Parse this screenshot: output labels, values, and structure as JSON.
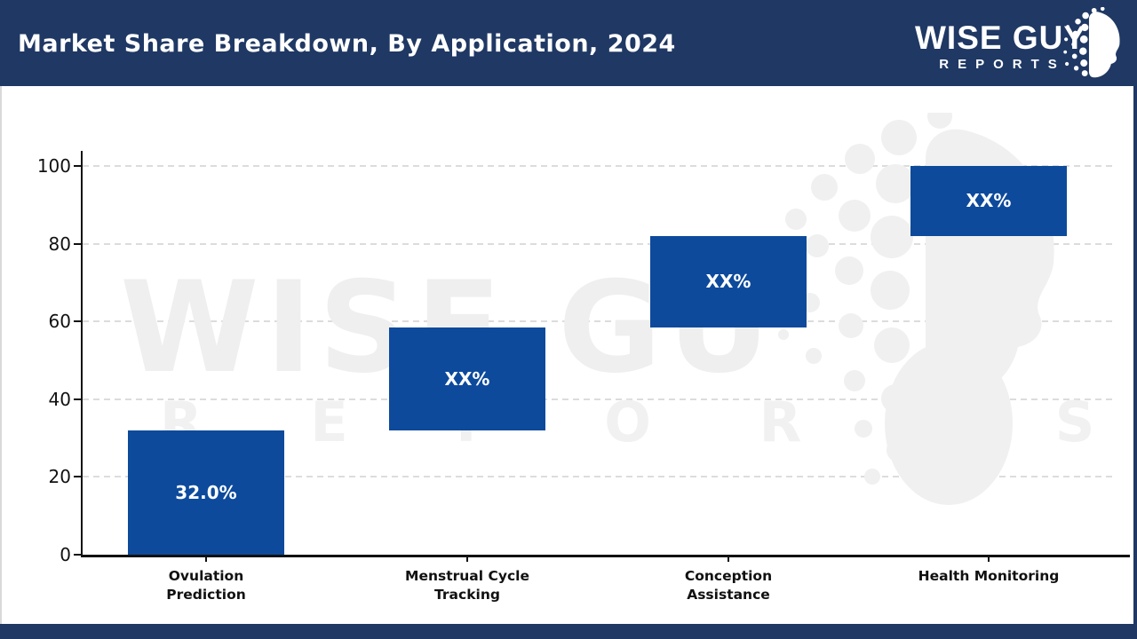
{
  "header": {
    "title": "Market Share Breakdown, By Application, 2024",
    "logo": {
      "line1": "WISE GUY",
      "line2": "REPORTS"
    }
  },
  "watermark": {
    "line1": "WISE GU",
    "line2": "R E P O R T S"
  },
  "colors": {
    "header_bg": "#1f3864",
    "bar": "#0d4a9c",
    "bar_label": "#ffffff",
    "grid": "#dcdcdc",
    "axis": "#111111",
    "watermark": "#efefef"
  },
  "chart_data": {
    "type": "bar",
    "subtype": "waterfall",
    "title": "Market Share Breakdown, By Application, 2024",
    "xlabel": "",
    "ylabel": "",
    "ylim": [
      0,
      100
    ],
    "yticks": [
      0,
      20,
      40,
      60,
      80,
      100
    ],
    "grid": "horizontal-dashed",
    "legend": "none",
    "categories": [
      "Ovulation Prediction",
      "Menstrual Cycle Tracking",
      "Conception Assistance",
      "Health Monitoring"
    ],
    "segments": [
      {
        "category": "Ovulation Prediction",
        "lines": [
          "Ovulation",
          "Prediction"
        ],
        "start": 0,
        "end": 32,
        "value": 32.0,
        "label": "32.0%"
      },
      {
        "category": "Menstrual Cycle Tracking",
        "lines": [
          "Menstrual Cycle",
          "Tracking"
        ],
        "start": 32,
        "end": 58.5,
        "value": 26.5,
        "label": "XX%"
      },
      {
        "category": "Conception Assistance",
        "lines": [
          "Conception",
          "Assistance"
        ],
        "start": 58.5,
        "end": 82,
        "value": 23.5,
        "label": "XX%"
      },
      {
        "category": "Health Monitoring",
        "lines": [
          "Health Monitoring"
        ],
        "start": 82,
        "end": 100,
        "value": 18.0,
        "label": "XX%"
      }
    ]
  }
}
